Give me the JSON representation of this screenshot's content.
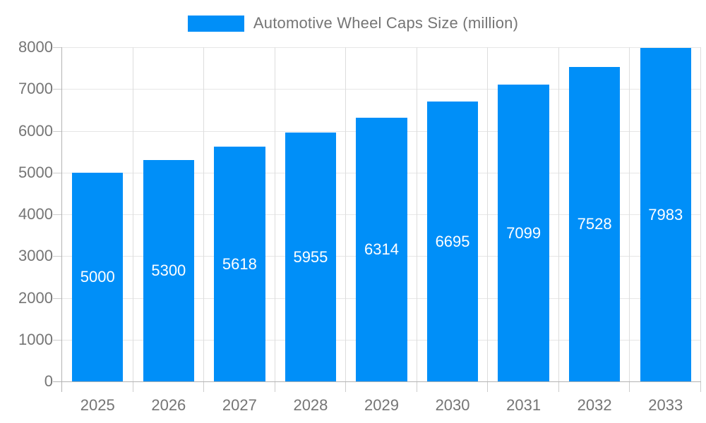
{
  "legend": {
    "label": "Automotive Wheel Caps Size (million)"
  },
  "colors": {
    "bar": "#008ff8",
    "grid_h": "#e6e6e6",
    "grid_v": "#dddddd",
    "axis": "#b3b3b3",
    "tick": "#cccccc",
    "axis_label_text": "#757575",
    "bar_label_text": "#ffffff",
    "background": "#ffffff"
  },
  "chart_data": {
    "type": "bar",
    "series_name": "Automotive Wheel Caps Size (million)",
    "categories": [
      "2025",
      "2026",
      "2027",
      "2028",
      "2029",
      "2030",
      "2031",
      "2032",
      "2033"
    ],
    "values": [
      5000,
      5300,
      5618,
      5955,
      6314,
      6695,
      7099,
      7528,
      7983
    ],
    "title": "",
    "xlabel": "",
    "ylabel": "",
    "ylim": [
      0,
      8000
    ],
    "yticks": [
      0,
      1000,
      2000,
      3000,
      4000,
      5000,
      6000,
      7000,
      8000
    ],
    "grid": true,
    "legend_position": "top",
    "bar_value_labels": "centered-white-inside-bar"
  }
}
